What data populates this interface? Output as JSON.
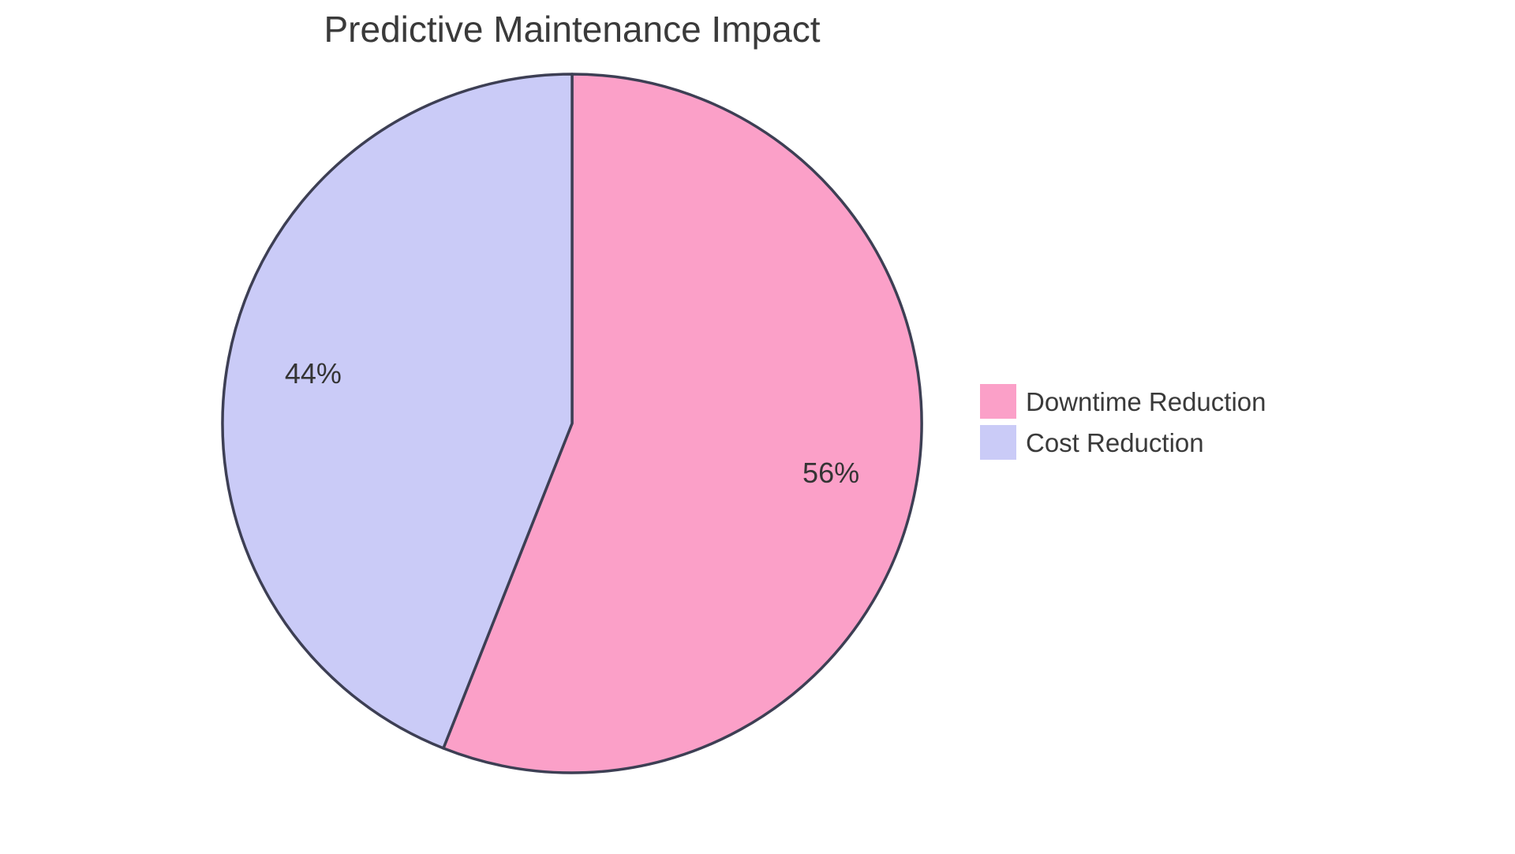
{
  "chart_data": {
    "type": "pie",
    "title": "Predictive Maintenance Impact",
    "categories": [
      "Downtime Reduction",
      "Cost Reduction"
    ],
    "values": [
      56,
      44
    ],
    "slices": [
      {
        "label": "Downtime Reduction",
        "value": 56,
        "pct_label": "56%",
        "color": "#FBA0C8"
      },
      {
        "label": "Cost Reduction",
        "value": 44,
        "pct_label": "44%",
        "color": "#CACBF7"
      }
    ],
    "start_angle": "12-oclock",
    "direction": "clockwise",
    "legend_position": "right",
    "border_color": "#3D3F54",
    "label_color": "#343434",
    "title_color": "#3A3A3A",
    "background": "#FFFFFF"
  }
}
